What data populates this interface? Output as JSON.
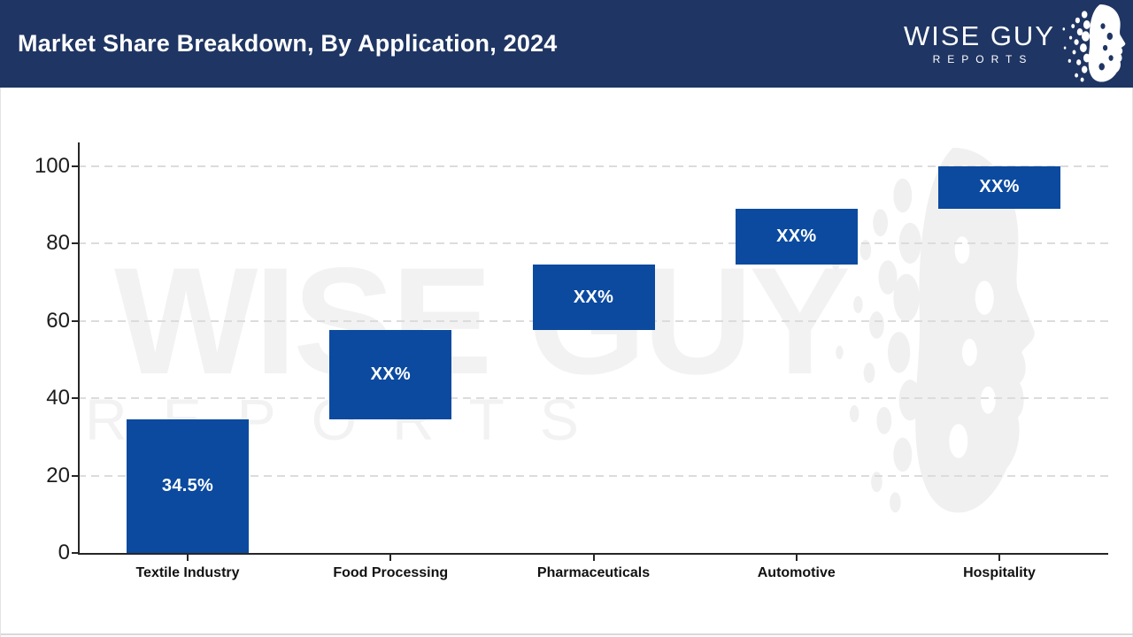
{
  "header": {
    "title": "Market Share Breakdown, By Application, 2024",
    "logo": {
      "wordmark": "WISE GUY",
      "subtext": "REPORTS"
    }
  },
  "watermark": {
    "wordmark": "WISE GUY",
    "subtext": "REPORTS"
  },
  "chart_data": {
    "type": "bar",
    "variant": "waterfall",
    "title": "Market Share Breakdown, By Application, 2024",
    "categories": [
      "Textile Industry",
      "Food Processing",
      "Pharmaceuticals",
      "Automotive",
      "Hospitality"
    ],
    "segments": [
      {
        "category": "Textile Industry",
        "start": 0,
        "end": 34.5,
        "label": "34.5%"
      },
      {
        "category": "Food Processing",
        "start": 34.5,
        "end": 57.5,
        "label": "XX%"
      },
      {
        "category": "Pharmaceuticals",
        "start": 57.5,
        "end": 74.5,
        "label": "XX%"
      },
      {
        "category": "Automotive",
        "start": 74.5,
        "end": 89.0,
        "label": "XX%"
      },
      {
        "category": "Hospitality",
        "start": 89.0,
        "end": 100.0,
        "label": "XX%"
      }
    ],
    "values": [
      34.5,
      23.0,
      17.0,
      14.5,
      11.0
    ],
    "yticks": [
      0,
      20,
      40,
      60,
      80,
      100
    ],
    "ylim": [
      0,
      106
    ],
    "xlabel": "",
    "ylabel": "",
    "legend": null,
    "grid": "horizontal-dashed",
    "bar_color": "#0b4a9f",
    "label_color": "#ffffff",
    "header_color": "#1f3563"
  }
}
